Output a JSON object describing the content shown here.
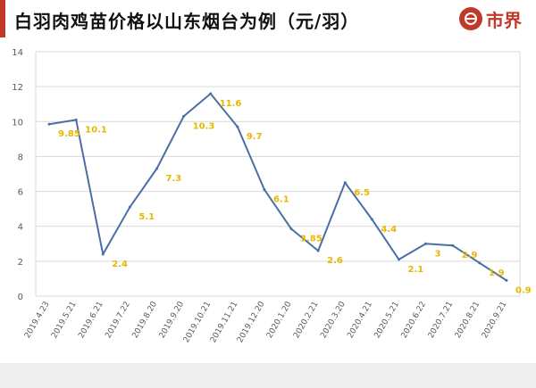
{
  "header": {
    "title": "白羽肉鸡苗价格以山东烟台为例（元/羽）",
    "logo_text": "市界"
  },
  "colors": {
    "brand": "#c0392b",
    "line": "#4a6fa5",
    "label": "#e6b800",
    "grid": "#d9d9d9",
    "axis_text": "#595959"
  },
  "chart_data": {
    "type": "line",
    "title": "白羽肉鸡苗价格以山东烟台为例（元/羽）",
    "xlabel": "",
    "ylabel": "",
    "ylim": [
      0,
      14
    ],
    "yticks": [
      0,
      2,
      4,
      6,
      8,
      10,
      12,
      14
    ],
    "grid": true,
    "x": [
      "2019.4.23",
      "2019.5.21",
      "2019.6.21",
      "2019.7.22",
      "2019.8.20",
      "2019.9.20",
      "2019.10.21",
      "2019.11.21",
      "2019.12.20",
      "2020.1.20",
      "2020.2.21",
      "2020.3.20",
      "2020.4.21",
      "2020.5.21",
      "2020.6.22",
      "2020.7.21",
      "2020.8.21",
      "2020.9.21"
    ],
    "series": [
      {
        "values": [
          9.85,
          10.1,
          2.4,
          5.1,
          7.3,
          10.3,
          11.6,
          9.7,
          6.1,
          3.85,
          2.6,
          6.5,
          4.4,
          2.1,
          3,
          2.9,
          1.9,
          0.9
        ],
        "labels": [
          "9.85",
          "10.1",
          "2.4",
          "5.1",
          "7.3",
          "10.3",
          "11.6",
          "9.7",
          "6.1",
          "3.85",
          "2.6",
          "6.5",
          "4.4",
          "2.1",
          "3",
          "2.9",
          "1.9",
          "0.9"
        ]
      }
    ]
  }
}
